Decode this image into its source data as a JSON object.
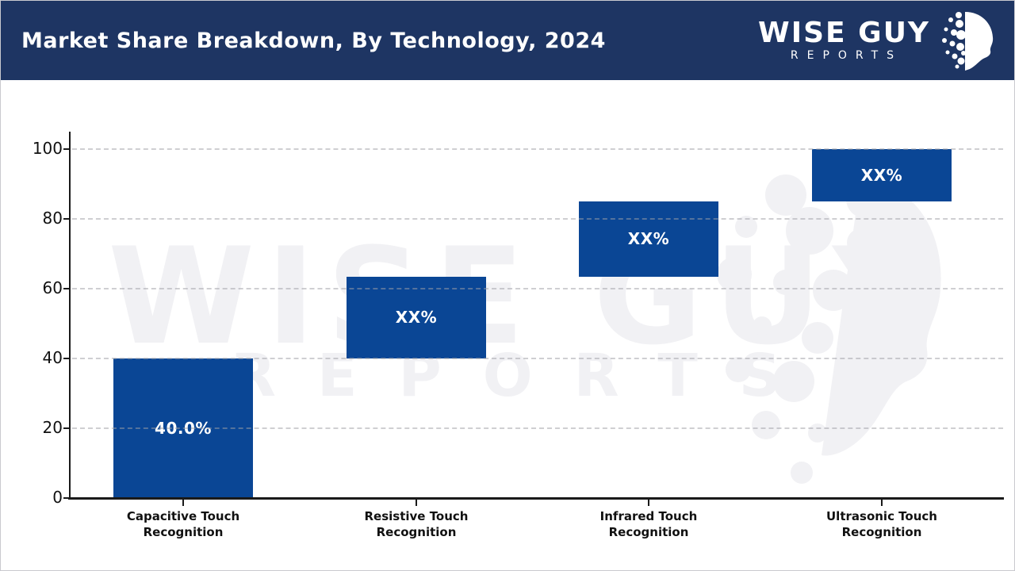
{
  "header": {
    "title": "Market Share Breakdown, By Technology, 2024",
    "logo": {
      "line1": "WISE GUY",
      "line2": "REPORTS"
    }
  },
  "watermark": {
    "line1": "WISE GUY",
    "line2": "REPORTS"
  },
  "chart_data": {
    "type": "bar",
    "variant": "waterfall",
    "title": "Market Share Breakdown, By Technology, 2024",
    "categories": [
      "Capacitive Touch Recognition",
      "Resistive Touch Recognition",
      "Infrared Touch Recognition",
      "Ultrasonic Touch Recognition"
    ],
    "categories_lines": [
      [
        "Capacitive Touch",
        "Recognition"
      ],
      [
        "Resistive Touch",
        "Recognition"
      ],
      [
        "Infrared Touch",
        "Recognition"
      ],
      [
        "Ultrasonic Touch",
        "Recognition"
      ]
    ],
    "segments": [
      {
        "start": 0,
        "end": 40,
        "label": "40.0%"
      },
      {
        "start": 40,
        "end": 63.5,
        "label": "XX%"
      },
      {
        "start": 63.5,
        "end": 85,
        "label": "XX%"
      },
      {
        "start": 85,
        "end": 100,
        "label": "XX%"
      }
    ],
    "yticks": [
      0,
      20,
      40,
      60,
      80,
      100
    ],
    "ylim": [
      0,
      105
    ],
    "grid": true,
    "legend": false,
    "bar_color": "#0a4695",
    "header_color": "#1e3563",
    "grid_color": "#c8c8cc",
    "watermark_color": "#f1f1f4"
  }
}
